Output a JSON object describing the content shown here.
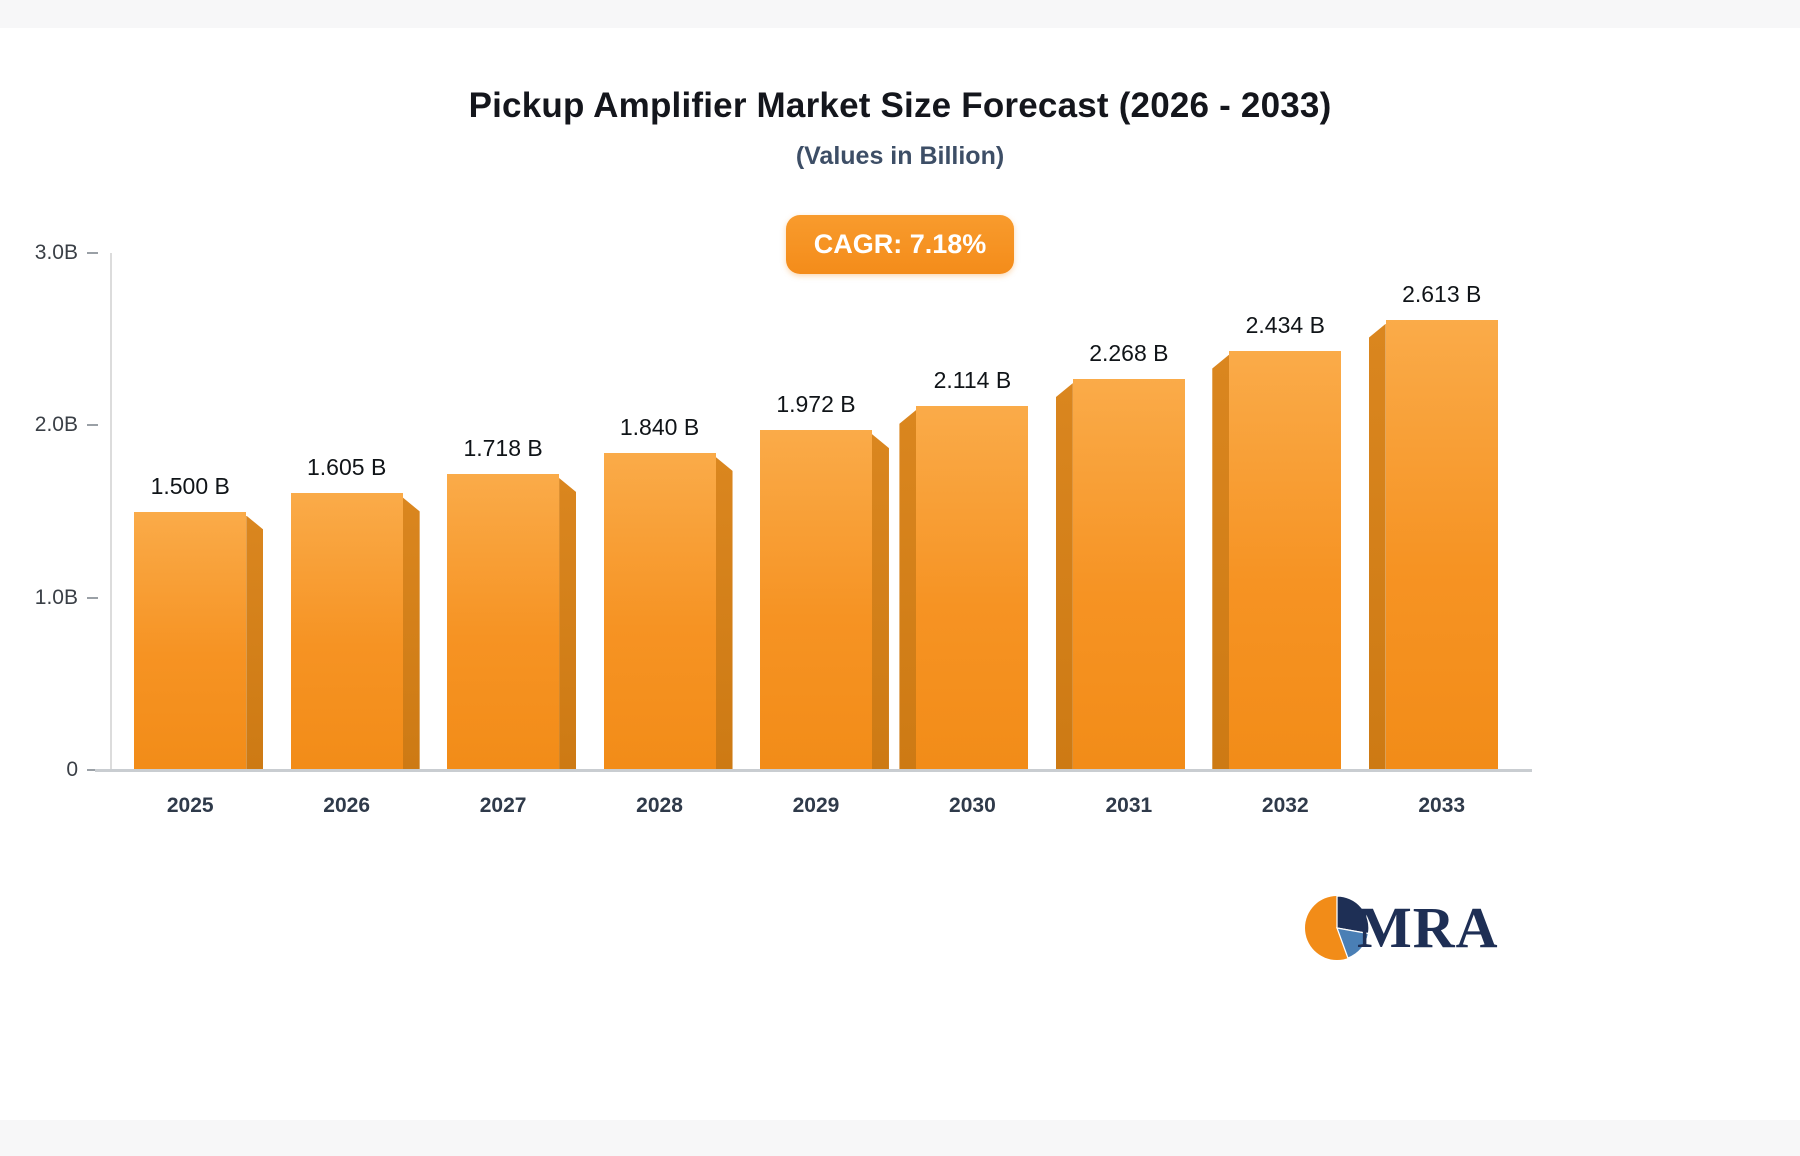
{
  "page": {
    "logo_text": "MRA"
  },
  "colors": {
    "bar_top": "#FAAB49",
    "bar_bottom": "#F28C18",
    "bar_shade": "#CD7A14",
    "accent_badge": "#F48C1A",
    "title_text": "#14161C",
    "subtitle_text": "#3D4E66",
    "axis_line": "#C9CDD1",
    "logo_navy": "#1E2F55"
  },
  "chart_data": {
    "type": "bar",
    "title": "Pickup Amplifier Market Size Forecast (2026 - 2033)",
    "subtitle": "(Values in Billion)",
    "annotation": "CAGR: 7.18%",
    "categories": [
      "2025",
      "2026",
      "2027",
      "2028",
      "2029",
      "2030",
      "2031",
      "2032",
      "2033"
    ],
    "values": [
      1.5,
      1.605,
      1.718,
      1.84,
      1.972,
      2.114,
      2.268,
      2.434,
      2.613
    ],
    "value_labels": [
      "1.500 B",
      "1.605 B",
      "1.718 B",
      "1.840 B",
      "1.972 B",
      "2.114 B",
      "2.268 B",
      "2.434 B",
      "2.613 B"
    ],
    "xlabel": "",
    "ylabel": "",
    "ylim": [
      0,
      3.0
    ],
    "yticks": [
      {
        "value": 0,
        "label": "0"
      },
      {
        "value": 1.0,
        "label": "1.0B"
      },
      {
        "value": 2.0,
        "label": "2.0B"
      },
      {
        "value": 3.0,
        "label": "3.0B"
      }
    ],
    "grid": false,
    "legend": null
  }
}
